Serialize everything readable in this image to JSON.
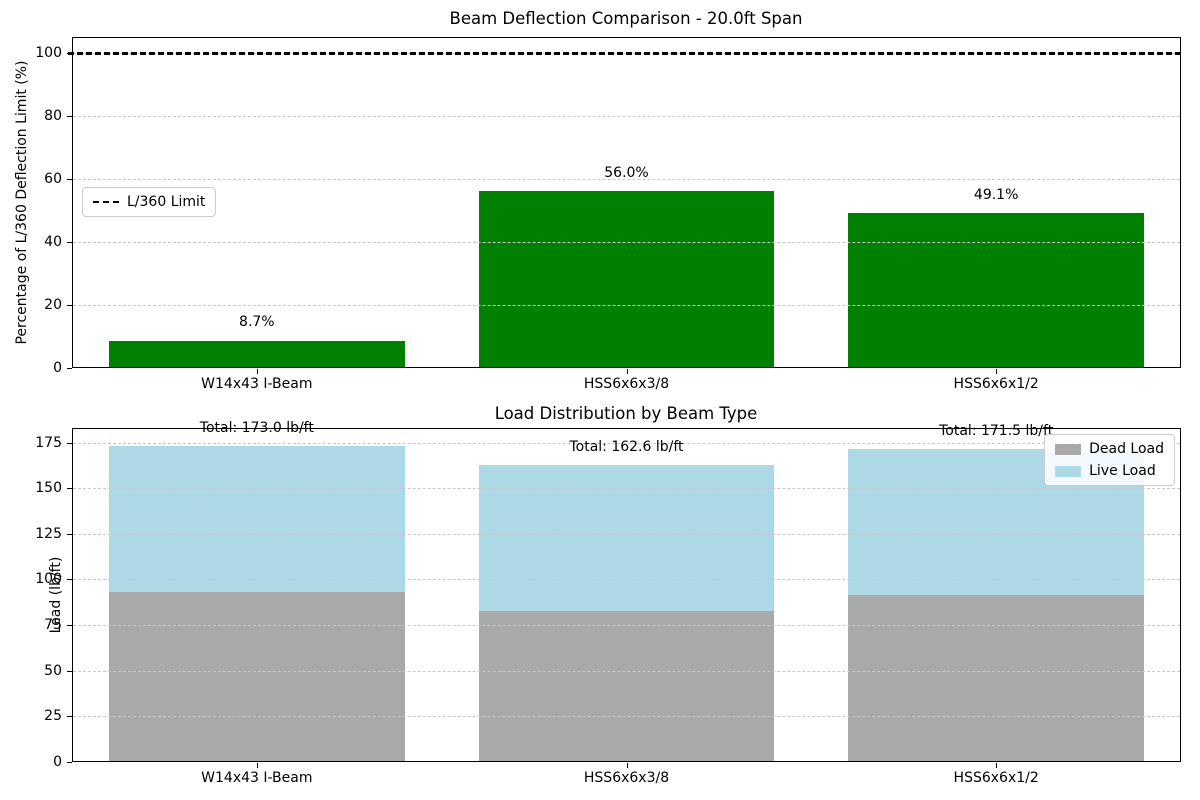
{
  "figure": {
    "background": "#ffffff"
  },
  "chart_data": [
    {
      "type": "bar",
      "title": "Beam Deflection Comparison - 20.0ft Span",
      "xlabel": "",
      "ylabel": "Percentage of L/360 Deflection Limit (%)",
      "categories": [
        "W14x43 I-Beam",
        "HSS6x6x3/8",
        "HSS6x6x1/2"
      ],
      "values": [
        8.7,
        56.0,
        49.1
      ],
      "bar_labels": [
        "8.7%",
        "56.0%",
        "49.1%"
      ],
      "bar_color": "#008000",
      "ylim": [
        0,
        105
      ],
      "yticks": [
        0,
        20,
        40,
        60,
        80,
        100
      ],
      "grid": true,
      "grid_color": "#c8c8c8",
      "reference_line": {
        "value": 100,
        "color": "#000000",
        "style": "dashed",
        "label": "L/360 Limit"
      },
      "legend": {
        "position": "center-left",
        "entries": [
          {
            "label": "L/360 Limit",
            "swatch": "dashed-line",
            "color": "#000000"
          }
        ]
      }
    },
    {
      "type": "bar",
      "stacked": true,
      "title": "Load Distribution by Beam Type",
      "xlabel": "",
      "ylabel": "Load (lb/ft)",
      "categories": [
        "W14x43 I-Beam",
        "HSS6x6x3/8",
        "HSS6x6x1/2"
      ],
      "series": [
        {
          "name": "Dead Load",
          "color": "#a9a9a9",
          "values": [
            93.0,
            82.6,
            91.5
          ]
        },
        {
          "name": "Live Load",
          "color": "#add8e6",
          "values": [
            80.0,
            80.0,
            80.0
          ]
        }
      ],
      "totals": [
        173.0,
        162.6,
        171.5
      ],
      "total_labels": [
        "Total: 173.0 lb/ft",
        "Total: 162.6 lb/ft",
        "Total: 171.5 lb/ft"
      ],
      "ylim": [
        0,
        183
      ],
      "yticks": [
        0,
        25,
        50,
        75,
        100,
        125,
        150,
        175
      ],
      "grid": true,
      "grid_color": "#c8c8c8",
      "legend": {
        "position": "top-right",
        "entries": [
          {
            "label": "Dead Load",
            "swatch": "rect",
            "color": "#a9a9a9"
          },
          {
            "label": "Live Load",
            "swatch": "rect",
            "color": "#add8e6"
          }
        ]
      }
    }
  ]
}
